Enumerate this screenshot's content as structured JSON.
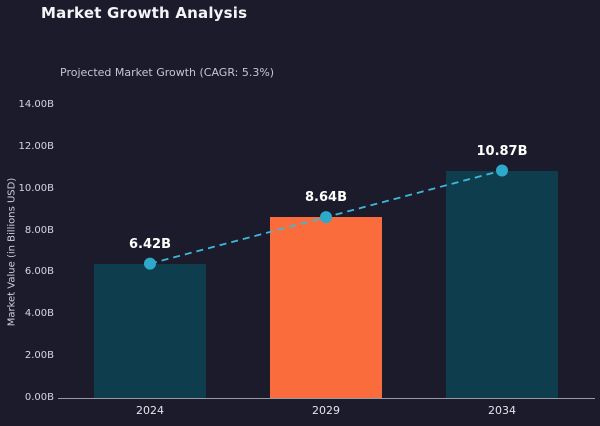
{
  "chart_data": {
    "type": "bar",
    "title": "Market Growth Analysis",
    "subtitle": "Projected Market Growth (CAGR: 5.3%)",
    "ylabel": "Market Value (in Billions USD)",
    "categories": [
      "2024",
      "2029",
      "2034"
    ],
    "values": [
      6.42,
      8.64,
      10.87
    ],
    "value_labels": [
      "6.42B",
      "8.64B",
      "10.87B"
    ],
    "ylim": [
      0,
      14
    ],
    "ytick_step": 2,
    "ytick_labels": [
      "0.00B",
      "2.00B",
      "4.00B",
      "6.00B",
      "8.00B",
      "10.00B",
      "12.00B",
      "14.00B"
    ],
    "grid": false,
    "legend": null,
    "overlay": "dashed trend line with circular markers connecting bar tops",
    "colors": {
      "background": "#1b1b2c",
      "bar_teal": "#0e3e4e",
      "bar_orange": "#fb6c3c",
      "trend_line": "#3fb8d8",
      "marker": "#2fa9c9",
      "axis_line": "#9a9aa6"
    },
    "bar_color_keys": [
      "bar_teal",
      "bar_orange",
      "bar_teal"
    ]
  }
}
